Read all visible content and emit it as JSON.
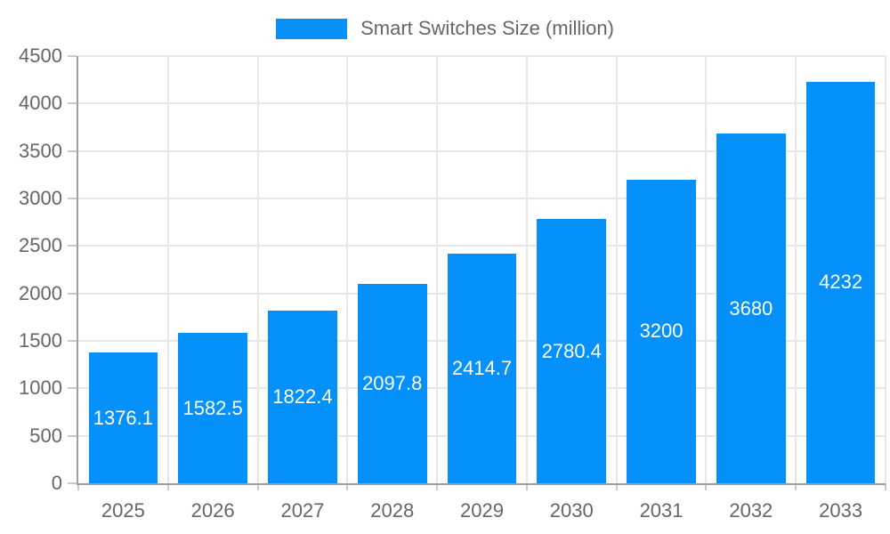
{
  "legend": {
    "label": "Smart Switches Size (million)"
  },
  "chart_data": {
    "type": "bar",
    "title": "Smart Switches Size (million)",
    "categories": [
      "2025",
      "2026",
      "2027",
      "2028",
      "2029",
      "2030",
      "2031",
      "2032",
      "2033"
    ],
    "values": [
      1376.1,
      1582.5,
      1822.4,
      2097.8,
      2414.7,
      2780.4,
      3200,
      3680,
      4232
    ],
    "value_labels": [
      "1376.1",
      "1582.5",
      "1822.4",
      "2097.8",
      "2414.7",
      "2780.4",
      "3200",
      "3680",
      "4232"
    ],
    "xlabel": "",
    "ylabel": "",
    "ylim": [
      0,
      4500
    ],
    "ytick_step": 500,
    "ytick_labels": [
      "0",
      "500",
      "1000",
      "1500",
      "2000",
      "2500",
      "3000",
      "3500",
      "4000",
      "4500"
    ],
    "grid": true,
    "legend_position": "top",
    "colors": {
      "bar": "#0690fa",
      "bar_label": "#ffffff",
      "axis_text": "#666666",
      "gridline": "#e7e7e7",
      "axis_line": "#9e9e9e",
      "tick": "#c9c9c9",
      "background": "#ffffff"
    }
  }
}
